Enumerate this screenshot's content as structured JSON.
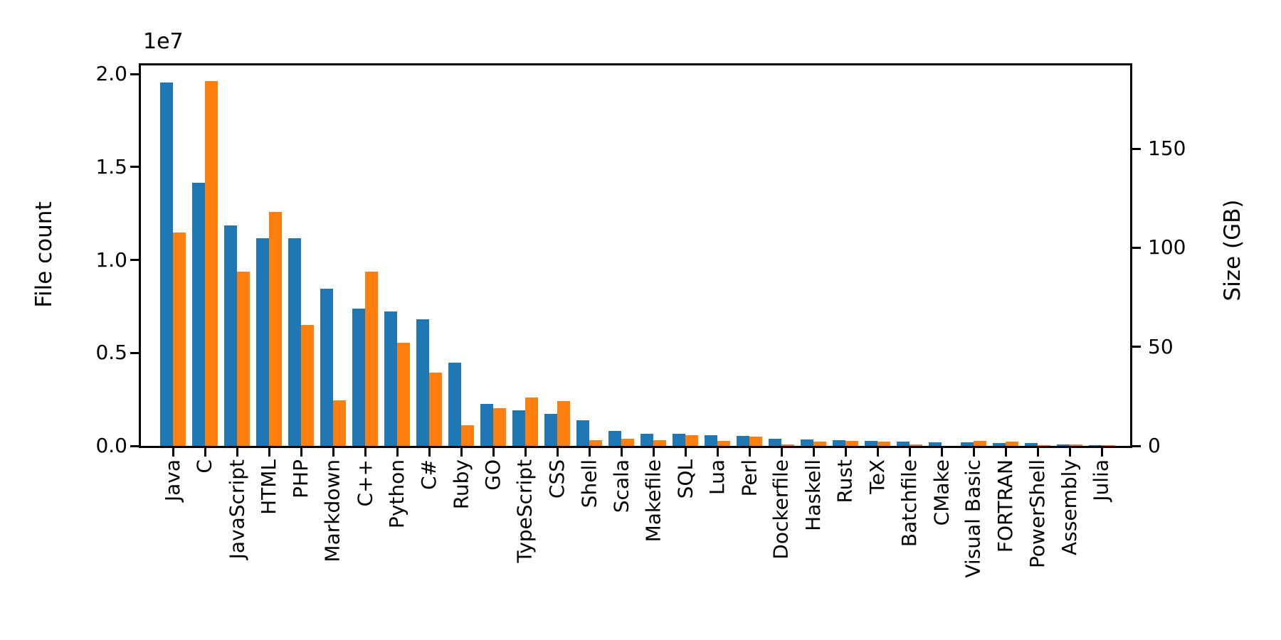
{
  "chart_data": {
    "type": "bar",
    "title": "",
    "xlabel": "",
    "ylabel_left": "File count",
    "ylabel_right": "Size (GB)",
    "left_axis": {
      "offset_text": "1e7",
      "color": "#1f77b4",
      "lim": [
        0,
        20470000
      ],
      "ticks": [
        {
          "v": 20000000,
          "label": "2.0"
        },
        {
          "v": 15000000,
          "label": "1.5"
        },
        {
          "v": 10000000,
          "label": "1.0"
        },
        {
          "v": 5000000,
          "label": "0.5"
        },
        {
          "v": 0,
          "label": "0.0"
        }
      ]
    },
    "right_axis": {
      "color": "#ff7f0e",
      "lim": [
        0,
        192
      ],
      "ticks": [
        {
          "v": 150,
          "label": "150"
        },
        {
          "v": 100,
          "label": "100"
        },
        {
          "v": 50,
          "label": "50"
        },
        {
          "v": 0,
          "label": "0"
        }
      ]
    },
    "grid": false,
    "legend": "none",
    "categories": [
      "Java",
      "C",
      "JavaScript",
      "HTML",
      "PHP",
      "Markdown",
      "C++",
      "Python",
      "C#",
      "Ruby",
      "GO",
      "TypeScript",
      "CSS",
      "Shell",
      "Scala",
      "Makefile",
      "SQL",
      "Lua",
      "Perl",
      "Dockerfile",
      "Haskell",
      "Rust",
      "TeX",
      "Batchfile",
      "CMake",
      "Visual Basic",
      "FORTRAN",
      "PowerShell",
      "Assembly",
      "Julia"
    ],
    "series": [
      {
        "name": "File count",
        "axis": "left",
        "color": "#1f77b4",
        "values": [
          19560000,
          14170000,
          11870000,
          11190000,
          11180000,
          8460000,
          7390000,
          7230000,
          6820000,
          4480000,
          2260000,
          1930000,
          1710000,
          1380000,
          820000,
          660000,
          640000,
          570000,
          520000,
          370000,
          330000,
          320000,
          260000,
          240000,
          200000,
          200000,
          150000,
          150000,
          70000,
          40000
        ]
      },
      {
        "name": "Size (GB)",
        "axis": "right",
        "color": "#ff7f0e",
        "values": [
          107.5,
          184,
          88,
          118,
          61,
          23,
          88,
          52,
          37,
          10.5,
          19,
          24.5,
          22.5,
          3.0,
          3.5,
          2.8,
          5.3,
          2.4,
          4.7,
          0.8,
          2.1,
          2.5,
          2.3,
          0.7,
          0.15,
          2.5,
          2.2,
          0.4,
          0.8,
          0.3
        ]
      }
    ]
  }
}
